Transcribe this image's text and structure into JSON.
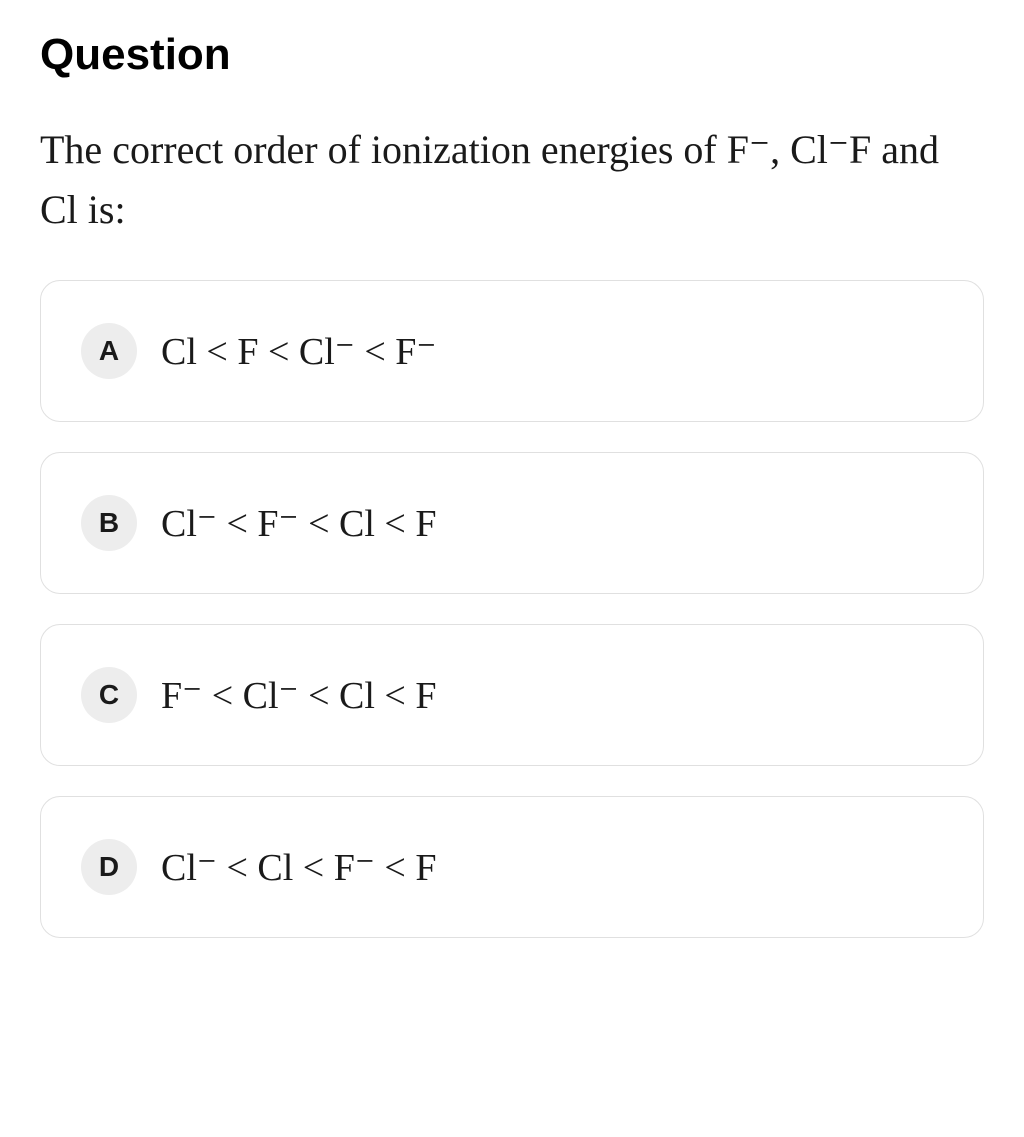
{
  "heading": "Question",
  "question_text": "The correct order of ionization energies of F⁻, Cl⁻F and Cl is:",
  "options": [
    {
      "label": "A",
      "text": "Cl < F < Cl⁻ < F⁻"
    },
    {
      "label": "B",
      "text": "Cl⁻ < F⁻ < Cl < F"
    },
    {
      "label": "C",
      "text": "F⁻ < Cl⁻ < Cl < F"
    },
    {
      "label": "D",
      "text": "Cl⁻ < Cl < F⁻ < F"
    }
  ],
  "styling": {
    "heading_fontsize": 44,
    "heading_fontweight": 700,
    "heading_color": "#000000",
    "question_fontsize": 40,
    "question_color": "#1a1a1a",
    "option_card_border_color": "#e0e0e0",
    "option_card_border_radius": 20,
    "option_card_padding": 42,
    "option_badge_bg": "#ededed",
    "option_badge_size": 56,
    "option_badge_fontsize": 28,
    "option_text_fontsize": 38,
    "option_text_color": "#1a1a1a",
    "background_color": "#ffffff",
    "gap_between_options": 30
  }
}
